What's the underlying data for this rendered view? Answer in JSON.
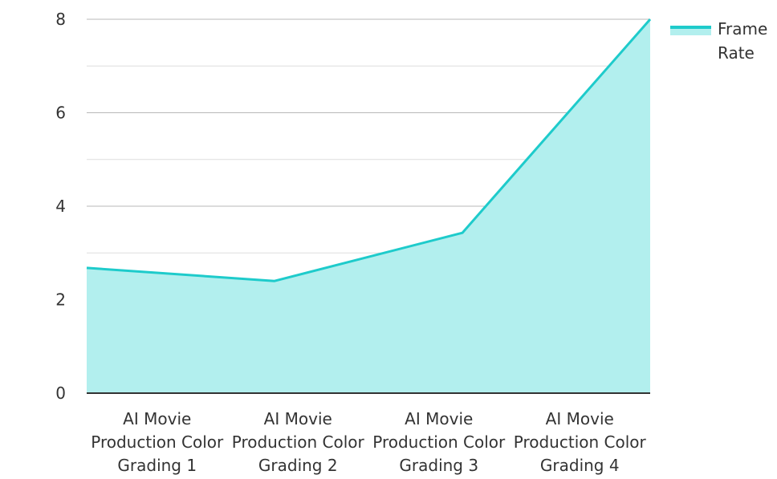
{
  "chart_data": {
    "type": "area",
    "categories": [
      [
        "AI Movie",
        "Production Color",
        "Grading 1"
      ],
      [
        "AI Movie",
        "Production Color",
        "Grading 2"
      ],
      [
        "AI Movie",
        "Production Color",
        "Grading 3"
      ],
      [
        "AI Movie",
        "Production Color",
        "Grading 4"
      ]
    ],
    "series": [
      {
        "name": "Frame Rate",
        "values": [
          2.68,
          2.4,
          3.43,
          8.0
        ]
      }
    ],
    "legend": {
      "lines": [
        "Frame",
        "Rate"
      ],
      "placement": "top-right"
    },
    "ylim": [
      0,
      8
    ],
    "yticks": [
      0,
      2,
      4,
      6,
      8
    ],
    "minor_grid": [
      1,
      3,
      5,
      7
    ],
    "grid": true,
    "colors": {
      "line": "#1ecbcb",
      "fill": "#b2efee",
      "grid_major": "#b8b8b8",
      "grid_minor": "#dedede",
      "axis": "#333333"
    }
  }
}
